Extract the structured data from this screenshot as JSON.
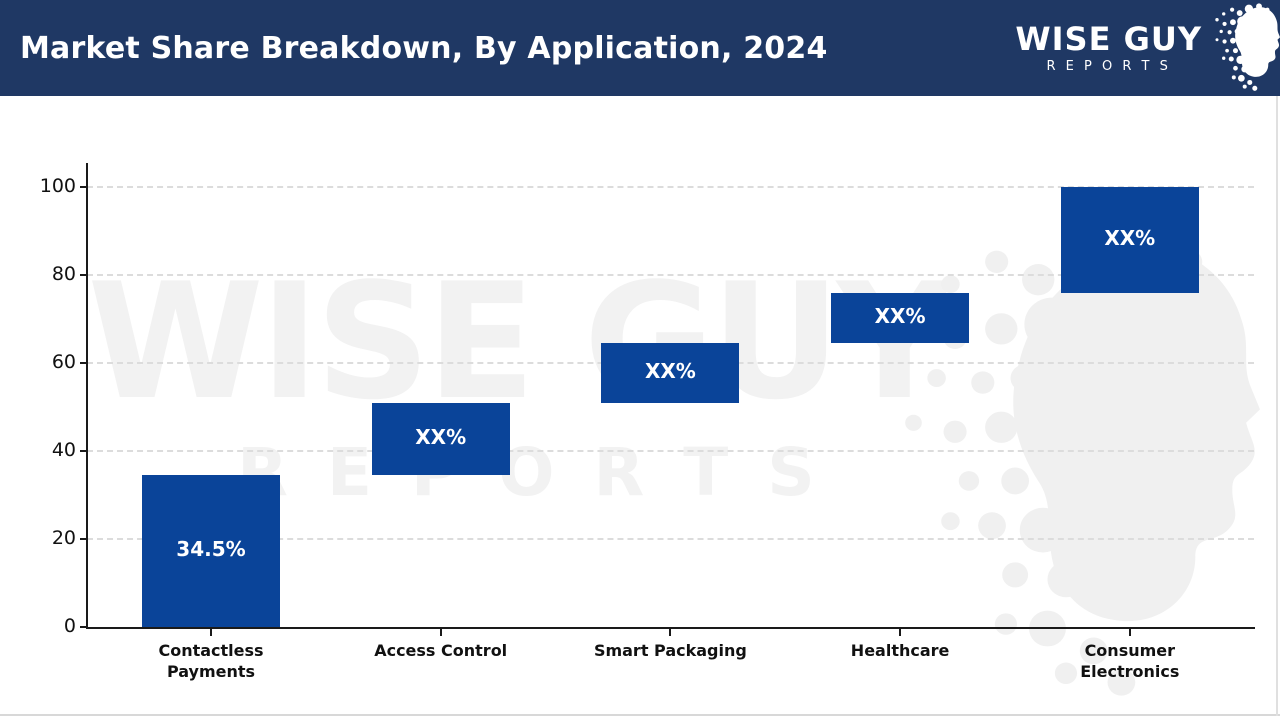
{
  "header": {
    "title": "Market Share Breakdown, By Application, 2024",
    "bg_color": "#1f3864",
    "logo": {
      "name": "WISE GUY",
      "sub": "R E P O R T S"
    }
  },
  "watermark": {
    "line1": "WISE GUY",
    "line2": "R E P O R T S"
  },
  "chart_data": {
    "type": "bar",
    "subtype": "waterfall",
    "title": "Market Share Breakdown, By Application, 2024",
    "categories": [
      "Contactless\nPayments",
      "Access Control",
      "Smart Packaging",
      "Healthcare",
      "Consumer\nElectronics"
    ],
    "segments": [
      {
        "category": "Contactless Payments",
        "start": 0,
        "end": 34.5,
        "value_label": "34.5%"
      },
      {
        "category": "Access Control",
        "start": 34.5,
        "end": 51,
        "value_label": "XX%"
      },
      {
        "category": "Smart Packaging",
        "start": 51,
        "end": 64.5,
        "value_label": "XX%"
      },
      {
        "category": "Healthcare",
        "start": 64.5,
        "end": 76,
        "value_label": "XX%"
      },
      {
        "category": "Consumer Electronics",
        "start": 76,
        "end": 100,
        "value_label": "XX%"
      }
    ],
    "xlabel": "",
    "ylabel": "",
    "ylim": [
      0,
      100
    ],
    "y_ticks": [
      0,
      20,
      40,
      60,
      80,
      100
    ],
    "grid": "horizontal dashed",
    "legend": "none",
    "bar_color": "#0a4499",
    "value_label_color": "#ffffff",
    "axis_color": "#1a1a1a",
    "grid_color": "#dcdcdc"
  }
}
